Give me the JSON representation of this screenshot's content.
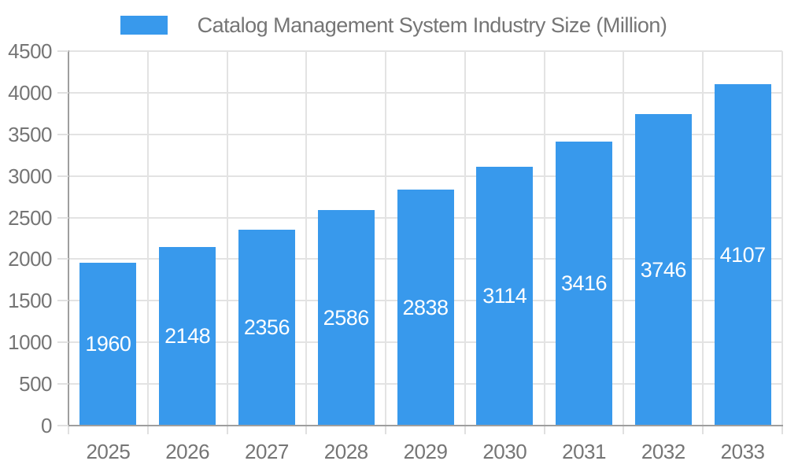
{
  "chart_data": {
    "type": "bar",
    "title": "Catalog Management System Industry Size (Million)",
    "categories": [
      "2025",
      "2026",
      "2027",
      "2028",
      "2029",
      "2030",
      "2031",
      "2032",
      "2033"
    ],
    "values": [
      1960,
      2148,
      2356,
      2586,
      2838,
      3114,
      3416,
      3746,
      4107
    ],
    "xlabel": "",
    "ylabel": "",
    "ylim": [
      0,
      4500
    ],
    "yticks": [
      0,
      500,
      1000,
      1500,
      2000,
      2500,
      3000,
      3500,
      4000,
      4500
    ],
    "grid": true,
    "bar_labels_shown": true,
    "legend_position": "top",
    "colors": {
      "bar": "#3899EC",
      "bar_label": "#FFFFFF",
      "axis_text": "#757575",
      "gridline": "#E3E3E3",
      "axis_line": "#9E9E9E",
      "tick": "#E0E0E0",
      "background": "#FFFFFF"
    }
  }
}
